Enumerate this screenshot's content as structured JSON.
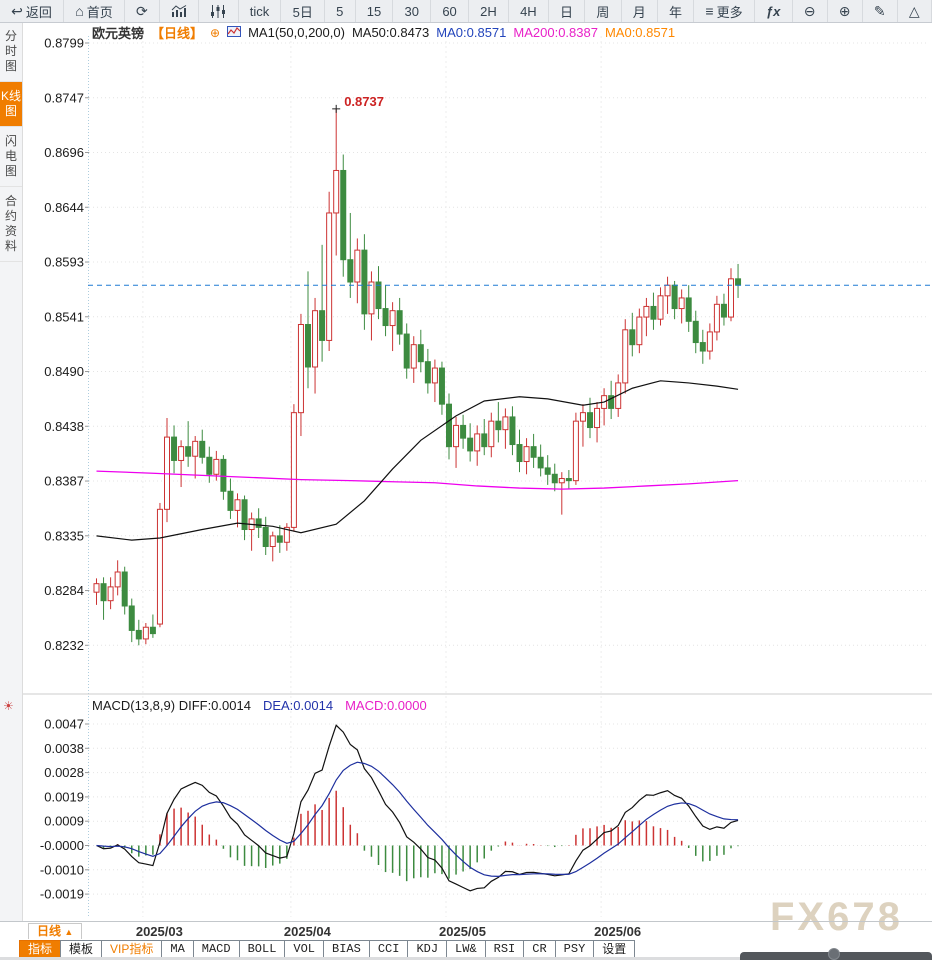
{
  "icons": {
    "add": "⊕",
    "sun": "☀"
  },
  "toolbar": {
    "items": [
      {
        "id": "back",
        "icon": "back-arrow",
        "label": "返回"
      },
      {
        "id": "home",
        "icon": "home",
        "label": "首页"
      },
      {
        "id": "refresh",
        "icon": "refresh",
        "label": ""
      },
      {
        "id": "stats",
        "icon": "bar-chart",
        "label": ""
      },
      {
        "id": "candles",
        "icon": "sliders",
        "label": ""
      },
      {
        "id": "tick",
        "icon": "",
        "label": "tick"
      },
      {
        "id": "5d",
        "icon": "",
        "label": "5日"
      },
      {
        "id": "m5",
        "icon": "",
        "label": "5"
      },
      {
        "id": "m15",
        "icon": "",
        "label": "15"
      },
      {
        "id": "m30",
        "icon": "",
        "label": "30"
      },
      {
        "id": "m60",
        "icon": "",
        "label": "60"
      },
      {
        "id": "h2",
        "icon": "",
        "label": "2H"
      },
      {
        "id": "h4",
        "icon": "",
        "label": "4H"
      },
      {
        "id": "day",
        "icon": "",
        "label": "日"
      },
      {
        "id": "week",
        "icon": "",
        "label": "周"
      },
      {
        "id": "month",
        "icon": "",
        "label": "月"
      },
      {
        "id": "year",
        "icon": "",
        "label": "年"
      },
      {
        "id": "more",
        "icon": "menu",
        "label": "更多"
      },
      {
        "id": "fx",
        "icon": "fx",
        "label": "ƒx"
      },
      {
        "id": "zoom-out",
        "icon": "zoom-out",
        "label": ""
      },
      {
        "id": "zoom-in",
        "icon": "zoom-in",
        "label": ""
      },
      {
        "id": "draw",
        "icon": "pencil",
        "label": ""
      },
      {
        "id": "shape",
        "icon": "triangle",
        "label": ""
      }
    ]
  },
  "sidebar": {
    "items": [
      {
        "id": "time-chart",
        "label": "分时图",
        "selected": false
      },
      {
        "id": "kline-chart",
        "label": "K线图",
        "selected": true
      },
      {
        "id": "lightning-chart",
        "label": "闪电图",
        "selected": false
      },
      {
        "id": "contract-info",
        "label": "合约资料",
        "selected": false
      }
    ]
  },
  "header": {
    "symbol": "欧元英镑",
    "period": "【日线】",
    "ma_settings": "MA1(50,0,200,0)",
    "ma50": "MA50:0.8473",
    "ma0_blue": "MA0:0.8571",
    "ma200": "MA200:0.8387",
    "ma0_orange": "MA0:0.8571"
  },
  "macd_header": {
    "left": "MACD(13,8,9) DIFF:0.0014",
    "dea": "DEA:0.0014",
    "macd": "MACD:0.0000"
  },
  "period_selector": {
    "label": "日线",
    "arrow": "▲"
  },
  "bottom_tabs": [
    {
      "id": "indicator",
      "label": "指标",
      "style": "selected"
    },
    {
      "id": "template",
      "label": "模板",
      "style": "cn"
    },
    {
      "id": "vip",
      "label": "VIP指标",
      "style": "vip"
    },
    {
      "id": "ma",
      "label": "MA",
      "style": "mono"
    },
    {
      "id": "macd",
      "label": "MACD",
      "style": "mono"
    },
    {
      "id": "boll",
      "label": "BOLL",
      "style": "mono"
    },
    {
      "id": "vol",
      "label": "VOL",
      "style": "mono"
    },
    {
      "id": "bias",
      "label": "BIAS",
      "style": "mono"
    },
    {
      "id": "cci",
      "label": "CCI",
      "style": "mono"
    },
    {
      "id": "kdj",
      "label": "KDJ",
      "style": "mono"
    },
    {
      "id": "lw",
      "label": "LW&",
      "style": "mono"
    },
    {
      "id": "rsi",
      "label": "RSI",
      "style": "mono"
    },
    {
      "id": "cr",
      "label": "CR",
      "style": "mono"
    },
    {
      "id": "psy",
      "label": "PSY",
      "style": "mono"
    },
    {
      "id": "settings",
      "label": "设置",
      "style": "cn"
    }
  ],
  "watermark": "FX678",
  "colors": {
    "up": "#cc3333",
    "down": "#3d8b40",
    "ma50": "#111111",
    "ma200": "#ee00ee",
    "diff": "#111111",
    "dea": "#1d2f9e",
    "price_line": "#1f7ad4",
    "accent": "#f07d00",
    "annotation": "#cc2222",
    "grid": "#e4e4e4"
  },
  "chart_data": {
    "type": "candlestick",
    "title": "欧元英镑 日线 (EUR/GBP daily)",
    "price_axis_labels": [
      "0.8799",
      "0.8747",
      "0.8696",
      "0.8644",
      "0.8593",
      "0.8541",
      "0.8490",
      "0.8438",
      "0.8387",
      "0.8335",
      "0.8284",
      "0.8232"
    ],
    "macd_axis_labels": [
      "0.0047",
      "0.0038",
      "0.0028",
      "0.0019",
      "0.0009",
      "-0.0000",
      "-0.0010",
      "-0.0019"
    ],
    "x_labels": [
      {
        "text": "2025/03",
        "index": 7
      },
      {
        "text": "2025/04",
        "index": 28
      },
      {
        "text": "2025/05",
        "index": 50
      },
      {
        "text": "2025/06",
        "index": 72
      }
    ],
    "current_price": 0.8571,
    "peak_annotation": {
      "text": "0.8737",
      "price": 0.8737,
      "index": 34
    },
    "price_range": {
      "top": 0.8799,
      "bottom": 0.8232
    },
    "macd_params": {
      "fast": 8,
      "slow": 13,
      "signal": 9,
      "diff": 0.0014,
      "dea": 0.0014,
      "hist": 0.0
    },
    "candles_ohlc": [
      [
        0.8282,
        0.8295,
        0.827,
        0.829
      ],
      [
        0.829,
        0.8296,
        0.8256,
        0.8274
      ],
      [
        0.8274,
        0.8296,
        0.8266,
        0.8287
      ],
      [
        0.8287,
        0.8312,
        0.8279,
        0.8301
      ],
      [
        0.8301,
        0.8306,
        0.8261,
        0.8269
      ],
      [
        0.8269,
        0.8276,
        0.8235,
        0.8246
      ],
      [
        0.8246,
        0.8256,
        0.8232,
        0.8238
      ],
      [
        0.8238,
        0.8253,
        0.8233,
        0.8249
      ],
      [
        0.8249,
        0.8261,
        0.8239,
        0.8243
      ],
      [
        0.8252,
        0.8366,
        0.8249,
        0.836
      ],
      [
        0.836,
        0.8446,
        0.8348,
        0.8428
      ],
      [
        0.8428,
        0.8439,
        0.8394,
        0.8406
      ],
      [
        0.8406,
        0.8425,
        0.8381,
        0.8419
      ],
      [
        0.8419,
        0.8443,
        0.84,
        0.841
      ],
      [
        0.841,
        0.8429,
        0.8389,
        0.8424
      ],
      [
        0.8424,
        0.8435,
        0.8403,
        0.8409
      ],
      [
        0.8409,
        0.8419,
        0.8385,
        0.8393
      ],
      [
        0.8393,
        0.8415,
        0.8387,
        0.8407
      ],
      [
        0.8407,
        0.8411,
        0.8369,
        0.8377
      ],
      [
        0.8377,
        0.8389,
        0.8351,
        0.8359
      ],
      [
        0.8359,
        0.8375,
        0.8343,
        0.8369
      ],
      [
        0.8369,
        0.8373,
        0.8331,
        0.8341
      ],
      [
        0.8341,
        0.8357,
        0.8321,
        0.8351
      ],
      [
        0.8351,
        0.8361,
        0.8333,
        0.8343
      ],
      [
        0.8343,
        0.8353,
        0.8317,
        0.8325
      ],
      [
        0.8325,
        0.8339,
        0.8311,
        0.8335
      ],
      [
        0.8335,
        0.8345,
        0.8319,
        0.8329
      ],
      [
        0.8329,
        0.8347,
        0.8321,
        0.8343
      ],
      [
        0.8343,
        0.8459,
        0.8339,
        0.8451
      ],
      [
        0.8451,
        0.8544,
        0.8429,
        0.8534
      ],
      [
        0.8534,
        0.8584,
        0.8474,
        0.8494
      ],
      [
        0.8494,
        0.8559,
        0.8469,
        0.8547
      ],
      [
        0.8547,
        0.8609,
        0.8499,
        0.8519
      ],
      [
        0.8519,
        0.8659,
        0.8509,
        0.8639
      ],
      [
        0.8639,
        0.8737,
        0.8599,
        0.8679
      ],
      [
        0.8679,
        0.8694,
        0.8579,
        0.8595
      ],
      [
        0.8595,
        0.8639,
        0.8559,
        0.8574
      ],
      [
        0.8574,
        0.8615,
        0.8554,
        0.8604
      ],
      [
        0.8604,
        0.8619,
        0.8529,
        0.8544
      ],
      [
        0.8544,
        0.8584,
        0.8519,
        0.8574
      ],
      [
        0.8574,
        0.8589,
        0.8539,
        0.8549
      ],
      [
        0.8549,
        0.8571,
        0.8523,
        0.8533
      ],
      [
        0.8533,
        0.8555,
        0.8509,
        0.8547
      ],
      [
        0.8547,
        0.8559,
        0.8515,
        0.8525
      ],
      [
        0.8525,
        0.8535,
        0.8483,
        0.8493
      ],
      [
        0.8493,
        0.8523,
        0.8479,
        0.8515
      ],
      [
        0.8515,
        0.8529,
        0.8489,
        0.8499
      ],
      [
        0.8499,
        0.8511,
        0.8469,
        0.8479
      ],
      [
        0.8479,
        0.8501,
        0.8461,
        0.8493
      ],
      [
        0.8493,
        0.8499,
        0.8449,
        0.8459
      ],
      [
        0.8459,
        0.8469,
        0.8407,
        0.8419
      ],
      [
        0.8419,
        0.8447,
        0.8399,
        0.8439
      ],
      [
        0.8439,
        0.8449,
        0.8417,
        0.8427
      ],
      [
        0.8427,
        0.8441,
        0.8405,
        0.8415
      ],
      [
        0.8415,
        0.8439,
        0.8401,
        0.8431
      ],
      [
        0.8431,
        0.8445,
        0.8411,
        0.8419
      ],
      [
        0.8419,
        0.8451,
        0.8409,
        0.8443
      ],
      [
        0.8443,
        0.8461,
        0.8423,
        0.8435
      ],
      [
        0.8435,
        0.8455,
        0.8417,
        0.8447
      ],
      [
        0.8447,
        0.8457,
        0.8411,
        0.8421
      ],
      [
        0.8421,
        0.8435,
        0.8395,
        0.8405
      ],
      [
        0.8405,
        0.8427,
        0.8393,
        0.8419
      ],
      [
        0.8419,
        0.8431,
        0.8399,
        0.8409
      ],
      [
        0.8409,
        0.8421,
        0.8391,
        0.8399
      ],
      [
        0.8399,
        0.8411,
        0.8383,
        0.8393
      ],
      [
        0.8393,
        0.8403,
        0.8377,
        0.8385
      ],
      [
        0.8385,
        0.8395,
        0.8355,
        0.8389
      ],
      [
        0.8389,
        0.8397,
        0.8379,
        0.8387
      ],
      [
        0.8387,
        0.8451,
        0.8383,
        0.8443
      ],
      [
        0.8443,
        0.8459,
        0.8419,
        0.8451
      ],
      [
        0.8451,
        0.8465,
        0.8427,
        0.8437
      ],
      [
        0.8437,
        0.8461,
        0.8423,
        0.8455
      ],
      [
        0.8455,
        0.8474,
        0.8439,
        0.8467
      ],
      [
        0.8467,
        0.8481,
        0.8445,
        0.8455
      ],
      [
        0.8455,
        0.8487,
        0.8447,
        0.8479
      ],
      [
        0.8479,
        0.8539,
        0.8469,
        0.8529
      ],
      [
        0.8529,
        0.8545,
        0.8504,
        0.8515
      ],
      [
        0.8515,
        0.8549,
        0.8507,
        0.8541
      ],
      [
        0.8541,
        0.8559,
        0.8523,
        0.8551
      ],
      [
        0.8551,
        0.8564,
        0.8529,
        0.8539
      ],
      [
        0.8539,
        0.8569,
        0.8533,
        0.8561
      ],
      [
        0.8561,
        0.8579,
        0.8544,
        0.8571
      ],
      [
        0.8571,
        0.8575,
        0.8539,
        0.8549
      ],
      [
        0.8549,
        0.8567,
        0.8535,
        0.8559
      ],
      [
        0.8559,
        0.8571,
        0.8527,
        0.8537
      ],
      [
        0.8537,
        0.8547,
        0.8507,
        0.8517
      ],
      [
        0.8517,
        0.8529,
        0.8497,
        0.8509
      ],
      [
        0.8509,
        0.8535,
        0.8501,
        0.8527
      ],
      [
        0.8527,
        0.8561,
        0.8519,
        0.8553
      ],
      [
        0.8553,
        0.8563,
        0.8533,
        0.8541
      ],
      [
        0.8541,
        0.8587,
        0.8537,
        0.8577
      ],
      [
        0.8577,
        0.8591,
        0.8559,
        0.8571
      ]
    ],
    "ma50": [
      [
        0,
        0.8335
      ],
      [
        5,
        0.8331
      ],
      [
        9,
        0.8333
      ],
      [
        15,
        0.8341
      ],
      [
        20,
        0.8347
      ],
      [
        25,
        0.8344
      ],
      [
        29,
        0.8338
      ],
      [
        34,
        0.8346
      ],
      [
        38,
        0.8368
      ],
      [
        42,
        0.8398
      ],
      [
        46,
        0.8425
      ],
      [
        51,
        0.8448
      ],
      [
        55,
        0.8462
      ],
      [
        60,
        0.8466
      ],
      [
        64,
        0.8464
      ],
      [
        69,
        0.8458
      ],
      [
        72,
        0.8461
      ],
      [
        76,
        0.8474
      ],
      [
        80,
        0.8481
      ],
      [
        84,
        0.8479
      ],
      [
        88,
        0.8476
      ],
      [
        91,
        0.8473
      ]
    ],
    "ma200": [
      [
        0,
        0.8396
      ],
      [
        8,
        0.8394
      ],
      [
        15,
        0.8392
      ],
      [
        22,
        0.839
      ],
      [
        29,
        0.8388
      ],
      [
        36,
        0.8387
      ],
      [
        42,
        0.8386
      ],
      [
        48,
        0.8385
      ],
      [
        54,
        0.8382
      ],
      [
        60,
        0.838
      ],
      [
        66,
        0.8379
      ],
      [
        72,
        0.838
      ],
      [
        78,
        0.8382
      ],
      [
        84,
        0.8384
      ],
      [
        91,
        0.8387
      ]
    ]
  }
}
